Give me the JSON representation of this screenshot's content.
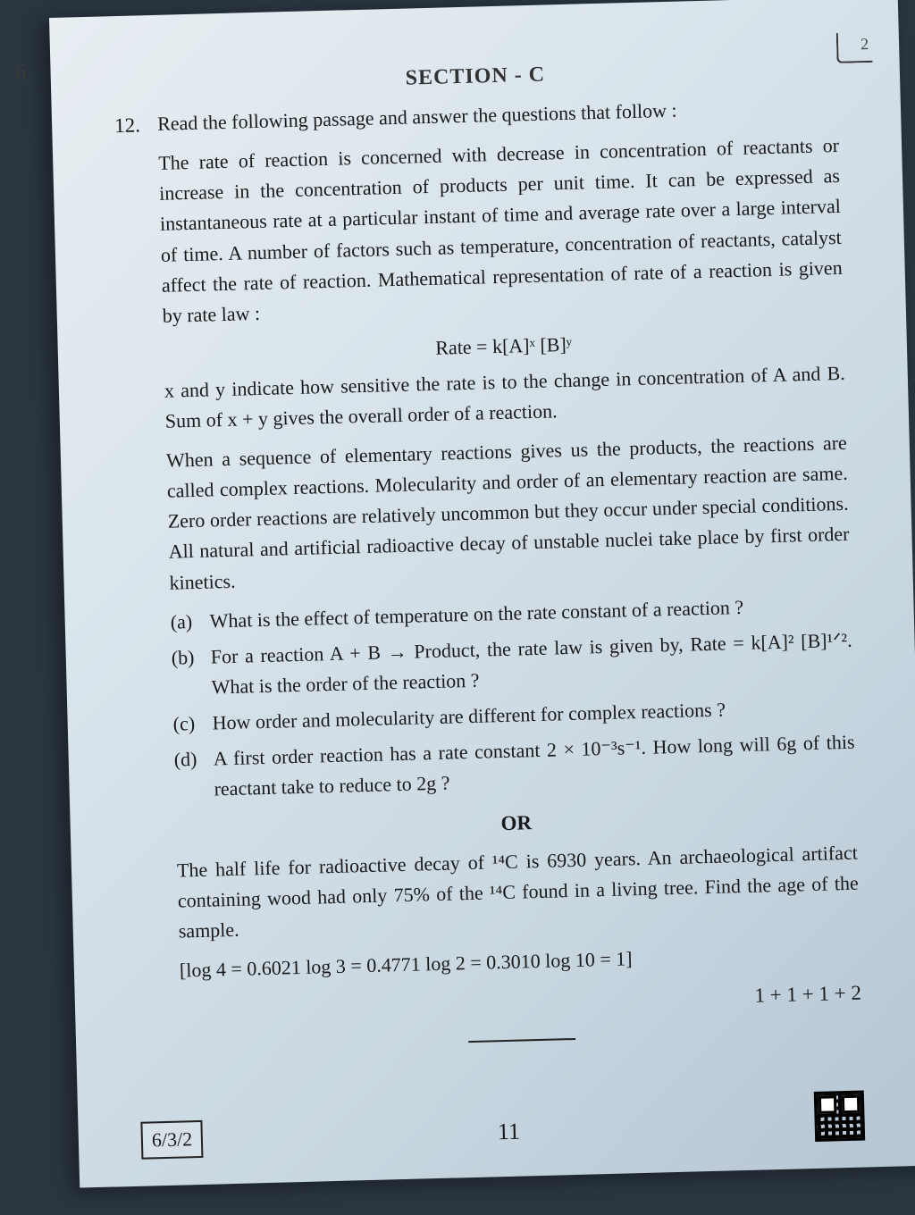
{
  "leftMarginNum": "6",
  "topCorner": "2",
  "sectionHeader": "SECTION - C",
  "question": {
    "number": "12.",
    "intro": "Read the following passage and answer the questions that follow :",
    "passage1": "The rate of reaction is concerned with decrease in concentration of reactants or increase in the concentration of products per unit time. It can be expressed as instantaneous rate at a particular instant of time and average rate over a large interval of time. A number of factors such as temperature, concentration of reactants, catalyst affect the rate of reaction. Mathematical representation of rate of a reaction is given by rate law :",
    "rateEq": "Rate = k[A]ˣ [B]ʸ",
    "passage2": "x and y indicate how sensitive the rate is to the change in concentration of A and B. Sum of x + y gives the overall order of a reaction.",
    "passage3": "When a sequence of elementary reactions gives us the products, the reactions are called complex reactions. Molecularity and order of an elementary reaction are same. Zero order reactions are relatively uncommon but they occur under special conditions. All natural and artificial radioactive decay of unstable nuclei take place by first order kinetics.",
    "subA": {
      "label": "(a)",
      "text": "What is the effect of temperature on the rate constant of a reaction ?"
    },
    "subB": {
      "label": "(b)",
      "text": "For a reaction A + B → Product, the rate law is given by, Rate = k[A]² [B]¹ᐟ². What is the order of the reaction ?"
    },
    "subC": {
      "label": "(c)",
      "text": "How order and molecularity are different for complex reactions ?"
    },
    "subD": {
      "label": "(d)",
      "text": "A first order reaction has a rate constant 2 × 10⁻³s⁻¹. How long will 6g of this reactant take to reduce to 2g ?"
    },
    "orLabel": "OR",
    "altText": "The half life for radioactive decay of ¹⁴C is 6930 years. An archaeological artifact containing wood had only 75% of the ¹⁴C found in a living tree. Find the age of the sample.",
    "logHint": "[log 4 = 0.6021    log 3 = 0.4771    log 2 = 0.3010   log 10 = 1]",
    "marks": "1 + 1 + 1 + 2"
  },
  "footer": {
    "code": "6/3/2",
    "pageNum": "11"
  }
}
